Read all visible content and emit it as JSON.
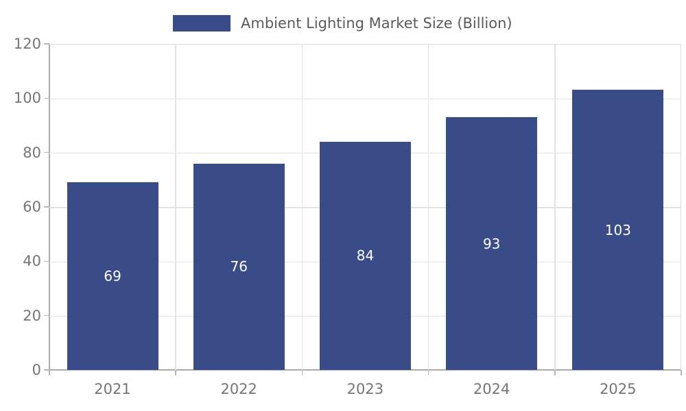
{
  "chart_data": {
    "type": "bar",
    "title": "Ambient Lighting Market Size (Billion)",
    "legend": {
      "label": "Ambient Lighting Market Size (Billion)",
      "position": "top-center"
    },
    "categories": [
      "2021",
      "2022",
      "2023",
      "2024",
      "2025"
    ],
    "values": [
      69,
      76,
      84,
      93,
      103
    ],
    "series": [
      {
        "name": "Ambient Lighting Market Size (Billion)",
        "values": [
          69,
          76,
          84,
          93,
          103
        ]
      }
    ],
    "xlabel": "",
    "ylabel": "",
    "ylim": [
      0,
      120
    ],
    "yticks": [
      0,
      20,
      40,
      60,
      80,
      100,
      120
    ],
    "grid": true,
    "bar_color": "#3a4c87",
    "bar_label_color": "#ffffff",
    "tick_label_color": "#757575",
    "grid_color": "#e2e2e6"
  }
}
